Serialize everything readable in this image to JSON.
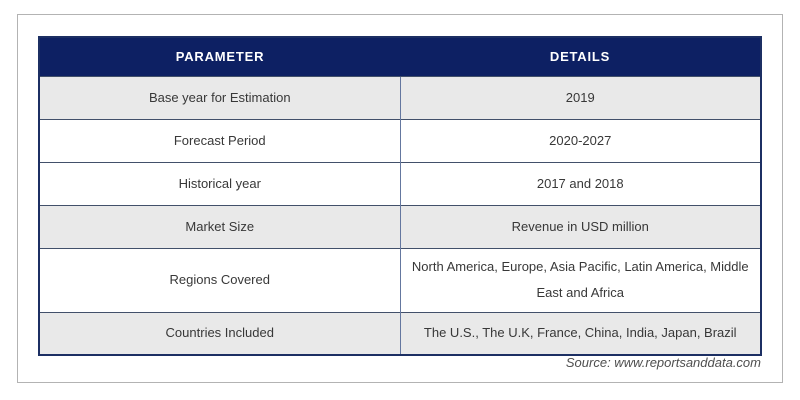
{
  "table": {
    "headers": [
      {
        "label": "PARAMETER"
      },
      {
        "label": "DETAILS"
      }
    ],
    "rows": [
      {
        "parameter": "Base year for Estimation",
        "details": "2019",
        "shaded": true,
        "tall": false
      },
      {
        "parameter": "Forecast Period",
        "details": "2020-2027",
        "shaded": false,
        "tall": false
      },
      {
        "parameter": "Historical year",
        "details": "2017 and 2018",
        "shaded": false,
        "tall": false
      },
      {
        "parameter": "Market Size",
        "details": "Revenue in USD million",
        "shaded": true,
        "tall": false
      },
      {
        "parameter": "Regions Covered",
        "details": "North America, Europe, Asia Pacific, Latin America, Middle East and Africa",
        "shaded": false,
        "tall": true
      },
      {
        "parameter": "Countries Included",
        "details": "The U.S., The U.K, France, China, India, Japan, Brazil",
        "shaded": true,
        "tall": false
      }
    ]
  },
  "source": {
    "label": "Source: www.reportsanddata.com"
  },
  "colors": {
    "header_background": "#0d2063",
    "header_text": "#ffffff",
    "shaded_row_background": "#e9e9e9",
    "table_outer_border": "#1c2f63",
    "row_border": "#42506a",
    "column_divider": "#64779f",
    "card_border": "#b3b3b3",
    "cell_text": "#383838",
    "source_text": "#4f4f4f"
  }
}
